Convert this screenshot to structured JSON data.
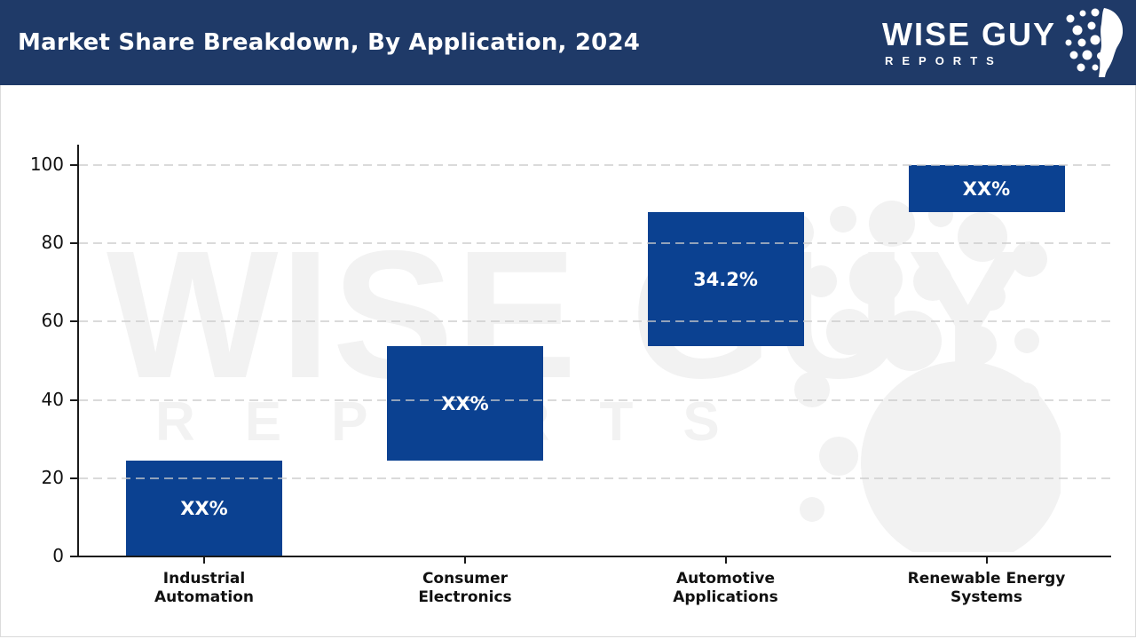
{
  "header": {
    "title": "Market Share Breakdown, By Application, 2024",
    "logo": {
      "primary": "WISE GUY",
      "secondary": "REPORTS"
    }
  },
  "watermark": {
    "primary": "WISE GUY",
    "secondary": "REPORTS"
  },
  "colors": {
    "header_bg": "#1f3a68",
    "bar": "#0b4191",
    "bar_label": "#ffffff",
    "axis": "#1a1a1a",
    "gridline": "#d9d9d9",
    "watermark": "#f2f2f2"
  },
  "chart_data": {
    "type": "bar",
    "subtype": "waterfall",
    "title": "Market Share Breakdown, By Application, 2024",
    "xlabel": "",
    "ylabel": "",
    "categories": [
      "Industrial\nAutomation",
      "Consumer\nElectronics",
      "Automotive\nApplications",
      "Renewable Energy\nSystems"
    ],
    "segments": [
      {
        "category": "Industrial Automation",
        "start": 0,
        "end": 24.5,
        "label": "XX%"
      },
      {
        "category": "Consumer Electronics",
        "start": 24.5,
        "end": 53.7,
        "label": "XX%"
      },
      {
        "category": "Automotive Applications",
        "start": 53.7,
        "end": 87.9,
        "label": "34.2%"
      },
      {
        "category": "Renewable Energy Systems",
        "start": 87.9,
        "end": 100,
        "label": "XX%"
      }
    ],
    "yticks": [
      0,
      20,
      40,
      60,
      80,
      100
    ],
    "ylim": [
      0,
      105
    ],
    "grid": "horizontal-dashed",
    "legend": "none"
  }
}
